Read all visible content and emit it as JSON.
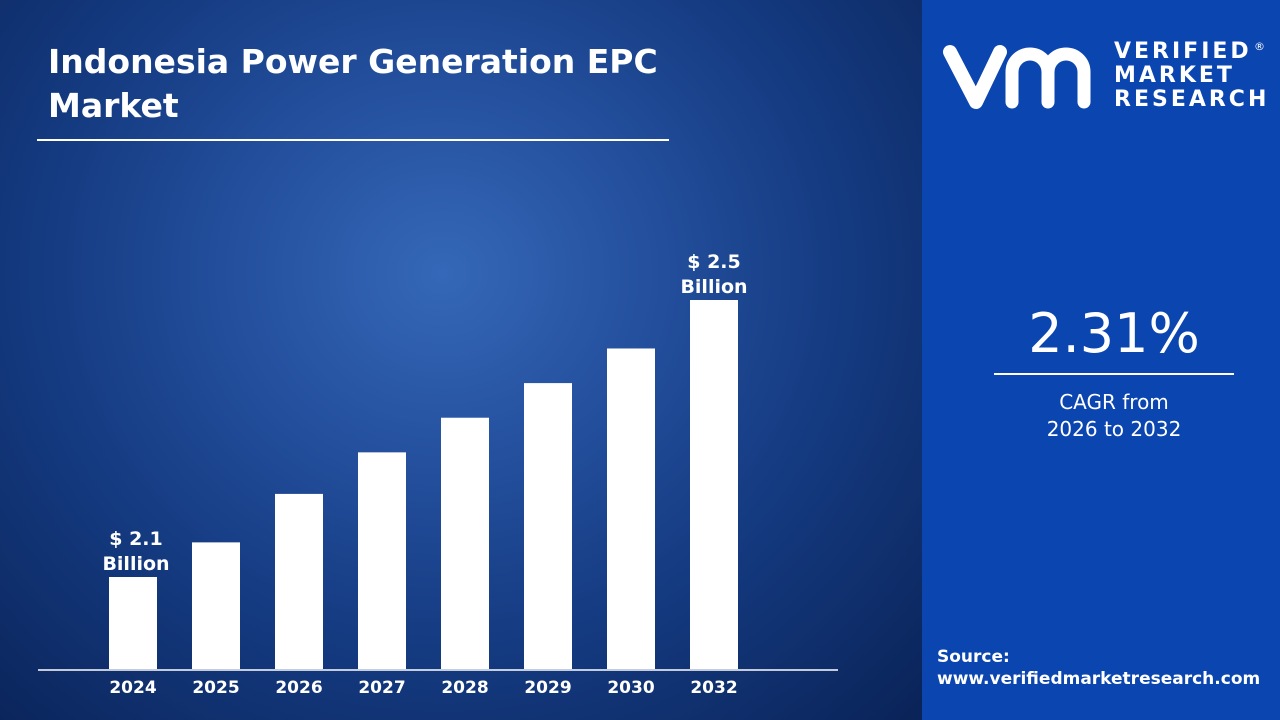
{
  "title": "Indonesia Power Generation EPC Market",
  "brand": {
    "name_lines": [
      "VERIFIED",
      "MARKET",
      "RESEARCH"
    ],
    "registered": "®",
    "logo_mark": "vmr"
  },
  "cagr": {
    "value": "2.31%",
    "label_line1": "CAGR from",
    "label_line2": "2026 to 2032"
  },
  "source": {
    "label": "Source:",
    "url": "www.verifiedmarketresearch.com"
  },
  "colors": {
    "bar": "#ffffff",
    "right_panel": "#0b45b0",
    "left_panel": "#1c4590"
  },
  "chart_data": {
    "type": "bar",
    "title": "Indonesia Power Generation EPC Market",
    "categories": [
      "2024",
      "2025",
      "2026",
      "2027",
      "2028",
      "2029",
      "2030",
      "2032"
    ],
    "values": [
      2.1,
      2.15,
      2.22,
      2.28,
      2.33,
      2.38,
      2.43,
      2.5
    ],
    "unit": "USD Billion",
    "annotations": [
      {
        "category": "2024",
        "line1": "$ 2.1",
        "line2": "Billion"
      },
      {
        "category": "2032",
        "line1": "$ 2.5",
        "line2": "Billion"
      }
    ],
    "grid": false,
    "yaxis_visible": false
  }
}
